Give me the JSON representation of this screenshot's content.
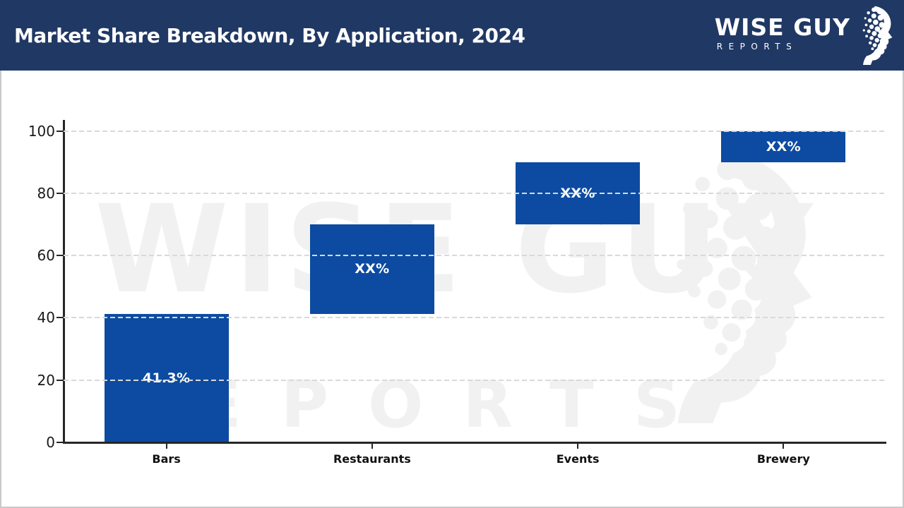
{
  "header": {
    "title": "Market Share Breakdown, By Application, 2024",
    "logo": {
      "line1": "WISE GUY",
      "line2": "REPORTS"
    }
  },
  "watermark": {
    "line1": "WISE GUY",
    "line2": "REPORTS"
  },
  "chart_data": {
    "type": "bar",
    "subtype": "waterfall",
    "title": "Market Share Breakdown, By Application, 2024",
    "categories": [
      "Bars",
      "Restaurants",
      "Events",
      "Brewery"
    ],
    "segments": [
      {
        "category": "Bars",
        "start": 0,
        "end": 41.3,
        "label": "41.3%"
      },
      {
        "category": "Restaurants",
        "start": 41.3,
        "end": 70,
        "label": "XX%"
      },
      {
        "category": "Events",
        "start": 70,
        "end": 90,
        "label": "XX%"
      },
      {
        "category": "Brewery",
        "start": 90,
        "end": 100,
        "label": "XX%"
      }
    ],
    "yticks": [
      0,
      20,
      40,
      60,
      80,
      100
    ],
    "ylim": [
      0,
      100
    ],
    "xlabel": "",
    "ylabel": "",
    "grid": "horizontal-dashed",
    "legend": "none"
  },
  "colors": {
    "header_bg": "#203864",
    "bar": "#0c4ba1",
    "bar_label": "#ffffff",
    "axis": "#262626",
    "grid": "#d9d9d9",
    "watermark": "#f1f1f1",
    "title_text": "#ffffff"
  }
}
